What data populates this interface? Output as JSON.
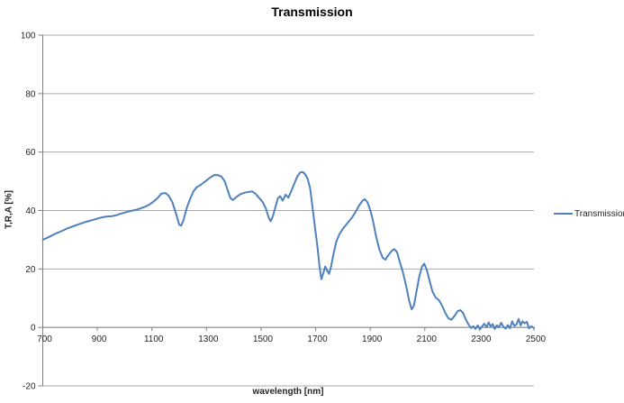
{
  "chart_data": {
    "type": "line",
    "title": "Transmission",
    "xlabel": "wavelength [nm]",
    "ylabel": "T,R,A [%]",
    "xlim": [
      700,
      2500
    ],
    "ylim": [
      -20,
      100
    ],
    "x_ticks": [
      700,
      900,
      1100,
      1300,
      1500,
      1700,
      1900,
      2100,
      2300,
      2500
    ],
    "y_ticks": [
      -20,
      0,
      20,
      40,
      60,
      80,
      100
    ],
    "grid": "horizontal-only",
    "legend_position": "right-middle",
    "colors": {
      "line": "#4F81BD",
      "gridline": "#ABABAB",
      "axis": "#7F7F7F",
      "text": "#262626"
    },
    "series": [
      {
        "name": "Transmission",
        "color": "#4F81BD",
        "points": [
          [
            700,
            30
          ],
          [
            715,
            30.6
          ],
          [
            730,
            31.3
          ],
          [
            745,
            32
          ],
          [
            760,
            32.6
          ],
          [
            775,
            33.2
          ],
          [
            790,
            33.9
          ],
          [
            805,
            34.4
          ],
          [
            820,
            34.9
          ],
          [
            835,
            35.4
          ],
          [
            850,
            35.9
          ],
          [
            865,
            36.3
          ],
          [
            880,
            36.7
          ],
          [
            895,
            37.1
          ],
          [
            910,
            37.5
          ],
          [
            925,
            37.8
          ],
          [
            940,
            38.0
          ],
          [
            955,
            38.1
          ],
          [
            970,
            38.4
          ],
          [
            985,
            38.9
          ],
          [
            1000,
            39.3
          ],
          [
            1015,
            39.7
          ],
          [
            1030,
            40.0
          ],
          [
            1045,
            40.3
          ],
          [
            1060,
            40.8
          ],
          [
            1075,
            41.3
          ],
          [
            1090,
            42.0
          ],
          [
            1105,
            43.0
          ],
          [
            1120,
            44.2
          ],
          [
            1135,
            45.8
          ],
          [
            1150,
            46.0
          ],
          [
            1162,
            45.0
          ],
          [
            1175,
            42.8
          ],
          [
            1188,
            39.0
          ],
          [
            1200,
            35.2
          ],
          [
            1207,
            34.8
          ],
          [
            1215,
            36.5
          ],
          [
            1228,
            41.0
          ],
          [
            1240,
            44.0
          ],
          [
            1252,
            46.5
          ],
          [
            1264,
            48.0
          ],
          [
            1276,
            48.6
          ],
          [
            1288,
            49.4
          ],
          [
            1300,
            50.3
          ],
          [
            1315,
            51.4
          ],
          [
            1330,
            52.2
          ],
          [
            1342,
            52.1
          ],
          [
            1355,
            51.6
          ],
          [
            1368,
            49.8
          ],
          [
            1378,
            46.8
          ],
          [
            1388,
            44.2
          ],
          [
            1397,
            43.6
          ],
          [
            1410,
            44.7
          ],
          [
            1425,
            45.6
          ],
          [
            1440,
            46.1
          ],
          [
            1455,
            46.4
          ],
          [
            1468,
            46.5
          ],
          [
            1480,
            45.7
          ],
          [
            1492,
            44.4
          ],
          [
            1505,
            43.0
          ],
          [
            1518,
            40.6
          ],
          [
            1528,
            37.6
          ],
          [
            1535,
            36.3
          ],
          [
            1543,
            38.0
          ],
          [
            1552,
            41.0
          ],
          [
            1562,
            44.3
          ],
          [
            1570,
            44.9
          ],
          [
            1579,
            43.4
          ],
          [
            1590,
            45.4
          ],
          [
            1600,
            44.4
          ],
          [
            1610,
            46.5
          ],
          [
            1620,
            48.8
          ],
          [
            1632,
            51.5
          ],
          [
            1643,
            53.0
          ],
          [
            1652,
            53.2
          ],
          [
            1660,
            52.6
          ],
          [
            1670,
            51.0
          ],
          [
            1680,
            47.5
          ],
          [
            1690,
            40.0
          ],
          [
            1698,
            34.0
          ],
          [
            1706,
            28.0
          ],
          [
            1714,
            21.0
          ],
          [
            1721,
            16.5
          ],
          [
            1728,
            18.5
          ],
          [
            1735,
            20.8
          ],
          [
            1742,
            19.5
          ],
          [
            1749,
            18.3
          ],
          [
            1757,
            21.0
          ],
          [
            1766,
            25.5
          ],
          [
            1776,
            29.5
          ],
          [
            1788,
            32.0
          ],
          [
            1800,
            33.8
          ],
          [
            1812,
            35.2
          ],
          [
            1824,
            36.5
          ],
          [
            1836,
            38.0
          ],
          [
            1848,
            39.8
          ],
          [
            1860,
            41.8
          ],
          [
            1872,
            43.4
          ],
          [
            1880,
            43.9
          ],
          [
            1890,
            42.8
          ],
          [
            1900,
            40.2
          ],
          [
            1910,
            36.5
          ],
          [
            1922,
            31.0
          ],
          [
            1934,
            26.5
          ],
          [
            1946,
            23.8
          ],
          [
            1955,
            23.2
          ],
          [
            1967,
            24.8
          ],
          [
            1979,
            26.2
          ],
          [
            1988,
            26.8
          ],
          [
            1998,
            25.8
          ],
          [
            2008,
            22.5
          ],
          [
            2020,
            18.8
          ],
          [
            2032,
            14.0
          ],
          [
            2043,
            9.0
          ],
          [
            2052,
            6.2
          ],
          [
            2060,
            7.5
          ],
          [
            2070,
            12.5
          ],
          [
            2080,
            17.5
          ],
          [
            2090,
            20.8
          ],
          [
            2098,
            21.8
          ],
          [
            2108,
            19.5
          ],
          [
            2118,
            15.8
          ],
          [
            2128,
            12.3
          ],
          [
            2140,
            10.2
          ],
          [
            2152,
            9.3
          ],
          [
            2163,
            7.5
          ],
          [
            2175,
            5.0
          ],
          [
            2186,
            3.2
          ],
          [
            2197,
            2.6
          ],
          [
            2208,
            3.8
          ],
          [
            2220,
            5.5
          ],
          [
            2230,
            5.9
          ],
          [
            2240,
            5.0
          ],
          [
            2250,
            2.8
          ],
          [
            2260,
            1.0
          ],
          [
            2270,
            -0.2
          ],
          [
            2278,
            0.4
          ],
          [
            2286,
            -0.5
          ],
          [
            2294,
            0.7
          ],
          [
            2302,
            -0.6
          ],
          [
            2310,
            0.3
          ],
          [
            2318,
            1.3
          ],
          [
            2326,
            0.1
          ],
          [
            2334,
            1.7
          ],
          [
            2341,
            0.4
          ],
          [
            2349,
            1.1
          ],
          [
            2356,
            -0.5
          ],
          [
            2364,
            0.7
          ],
          [
            2372,
            0.1
          ],
          [
            2380,
            1.6
          ],
          [
            2388,
            0.2
          ],
          [
            2396,
            -0.4
          ],
          [
            2404,
            0.8
          ],
          [
            2412,
            -0.3
          ],
          [
            2420,
            2.1
          ],
          [
            2428,
            0.5
          ],
          [
            2436,
            1.0
          ],
          [
            2444,
            2.9
          ],
          [
            2451,
            0.7
          ],
          [
            2458,
            2.1
          ],
          [
            2466,
            1.4
          ],
          [
            2474,
            1.9
          ],
          [
            2482,
            -0.3
          ],
          [
            2490,
            0.4
          ],
          [
            2500,
            -0.2
          ]
        ]
      }
    ]
  }
}
